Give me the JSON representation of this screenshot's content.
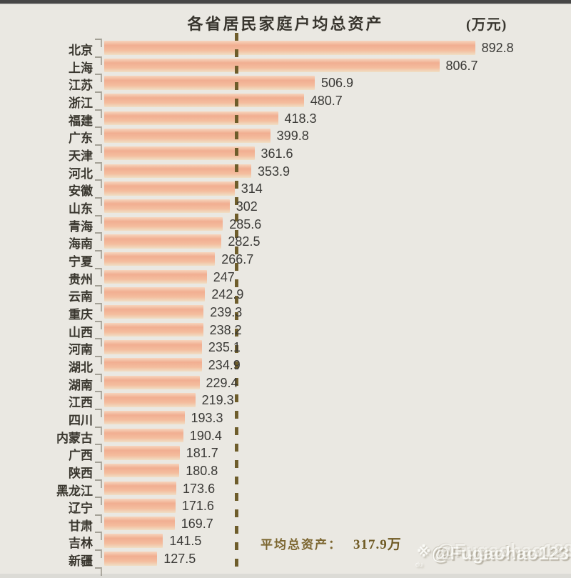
{
  "chart_data": {
    "type": "bar",
    "orientation": "horizontal",
    "title": "各省居民家庭户均总资产",
    "unit_label": "(万元)",
    "categories": [
      "北京",
      "上海",
      "江苏",
      "浙江",
      "福建",
      "广东",
      "天津",
      "河北",
      "安徽",
      "山东",
      "青海",
      "海南",
      "宁夏",
      "贵州",
      "云南",
      "重庆",
      "山西",
      "河南",
      "湖北",
      "湖南",
      "江西",
      "四川",
      "内蒙古",
      "广西",
      "陕西",
      "黑龙江",
      "辽宁",
      "甘肃",
      "吉林",
      "新疆"
    ],
    "values": [
      892.8,
      806.7,
      506.9,
      480.7,
      418.3,
      399.8,
      361.6,
      353.9,
      314,
      302,
      285.6,
      282.5,
      266.7,
      247,
      242.9,
      239.3,
      238.2,
      235.1,
      234.9,
      229.4,
      219.3,
      193.3,
      190.4,
      181.7,
      180.8,
      173.6,
      171.6,
      169.7,
      141.5,
      127.5
    ],
    "value_labels": [
      "892.8",
      "806.7",
      "506.9",
      "480.7",
      "418.3",
      "399.8",
      "361.6",
      "353.9",
      "314",
      "302",
      "285.6",
      "282.5",
      "266.7",
      "247",
      "242.9",
      "239.3",
      "238.2",
      "235.1",
      "234.9",
      "229.4",
      "219.3",
      "193.3",
      "190.4",
      "181.7",
      "180.8",
      "173.6",
      "171.6",
      "169.7",
      "141.5",
      "127.5"
    ],
    "average": {
      "label": "平均总资产：",
      "value_text": "317.9万",
      "numeric": 317.9
    },
    "xlim": [
      0,
      1000
    ],
    "grid": "off",
    "legend": "none",
    "bar_color": "#f2b497",
    "avg_line_color": "#6e5d2b",
    "value_color": "#3b3a37",
    "title_color": "#39362f",
    "annotation_color": "#7c6630",
    "background_color": "#eae8e2"
  },
  "watermark": {
    "logo": "※",
    "logo_sub": "du",
    "text": "@Fugaohao123"
  }
}
